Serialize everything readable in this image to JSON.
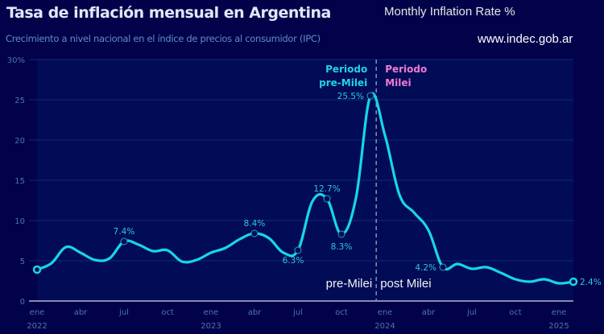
{
  "header": {
    "title": "Tasa de inflación mensual en Argentina",
    "subtitle": "Crecimiento a nivel nacional en el índice de precios al consumidor (IPC)",
    "overlay_title": "Monthly Inflation Rate  %",
    "source": "www.indec.gob.ar"
  },
  "colors": {
    "background": "#02024a",
    "plot_background": "#020c56",
    "line": "#16d6e8",
    "pre_period": "#22d2e6",
    "post_period": "#f07ad6",
    "divider": "#7f93b8",
    "axis": "#d6dbe8",
    "grid": "#0d2a6e",
    "tick_text": "#4f74a8"
  },
  "chart_data": {
    "type": "line",
    "title": "Tasa de inflación mensual en Argentina",
    "subtitle": "Crecimiento a nivel nacional en el índice de precios al consumidor (IPC)",
    "xlabel": "",
    "ylabel": "",
    "ylim": [
      0,
      30
    ],
    "yticks": [
      0,
      5,
      10,
      15,
      20,
      25,
      30
    ],
    "ytick_labels": [
      "0",
      "5",
      "10",
      "15",
      "20",
      "25",
      "30%"
    ],
    "grid": true,
    "xtick_labels": [
      {
        "month_index": 0,
        "label": "ene",
        "year": "2022"
      },
      {
        "month_index": 3,
        "label": "abr",
        "year": ""
      },
      {
        "month_index": 6,
        "label": "jul",
        "year": ""
      },
      {
        "month_index": 9,
        "label": "oct",
        "year": ""
      },
      {
        "month_index": 12,
        "label": "ene",
        "year": "2023"
      },
      {
        "month_index": 15,
        "label": "abr",
        "year": ""
      },
      {
        "month_index": 18,
        "label": "jul",
        "year": ""
      },
      {
        "month_index": 21,
        "label": "oct",
        "year": ""
      },
      {
        "month_index": 24,
        "label": "ene",
        "year": "2024"
      },
      {
        "month_index": 27,
        "label": "abr",
        "year": ""
      },
      {
        "month_index": 30,
        "label": "jul",
        "year": ""
      },
      {
        "month_index": 33,
        "label": "oct",
        "year": ""
      },
      {
        "month_index": 36,
        "label": "ene",
        "year": "2025"
      }
    ],
    "x_range_months": [
      0,
      37
    ],
    "series": [
      {
        "name": "Inflación mensual",
        "start": "2022-01",
        "values": [
          3.9,
          4.7,
          6.7,
          6.0,
          5.1,
          5.3,
          7.4,
          7.0,
          6.2,
          6.3,
          4.9,
          5.1,
          6.0,
          6.6,
          7.7,
          8.4,
          7.8,
          6.0,
          6.3,
          12.4,
          12.7,
          8.3,
          12.8,
          25.5,
          20.6,
          13.2,
          11.0,
          8.8,
          4.2,
          4.6,
          4.0,
          4.2,
          3.5,
          2.7,
          2.4,
          2.7,
          2.2,
          2.4
        ]
      }
    ],
    "annotations": [
      {
        "month_index": 6,
        "value": 7.4,
        "text": "7.4%",
        "position": "above"
      },
      {
        "month_index": 15,
        "value": 8.4,
        "text": "8.4%",
        "position": "above"
      },
      {
        "month_index": 18,
        "value": 6.3,
        "text": "6.3%",
        "position": "below-left"
      },
      {
        "month_index": 20,
        "value": 12.7,
        "text": "12.7%",
        "position": "above"
      },
      {
        "month_index": 21,
        "value": 8.3,
        "text": "8.3%",
        "position": "below"
      },
      {
        "month_index": 23,
        "value": 25.5,
        "text": "25.5%",
        "position": "left"
      },
      {
        "month_index": 28,
        "value": 4.2,
        "text": "4.2%",
        "position": "left"
      },
      {
        "month_index": 37,
        "value": 2.4,
        "text": "2.4%",
        "position": "right"
      }
    ],
    "endpoints": [
      0,
      37
    ],
    "divider": {
      "month_index": 23.4,
      "pre_label_line1": "Periodo",
      "pre_label_line2": "pre-Milei",
      "post_label_line1": "Periodo",
      "post_label_line2": "Milei",
      "bottom_left": "pre-Milei",
      "bottom_right": "post Milei"
    }
  }
}
